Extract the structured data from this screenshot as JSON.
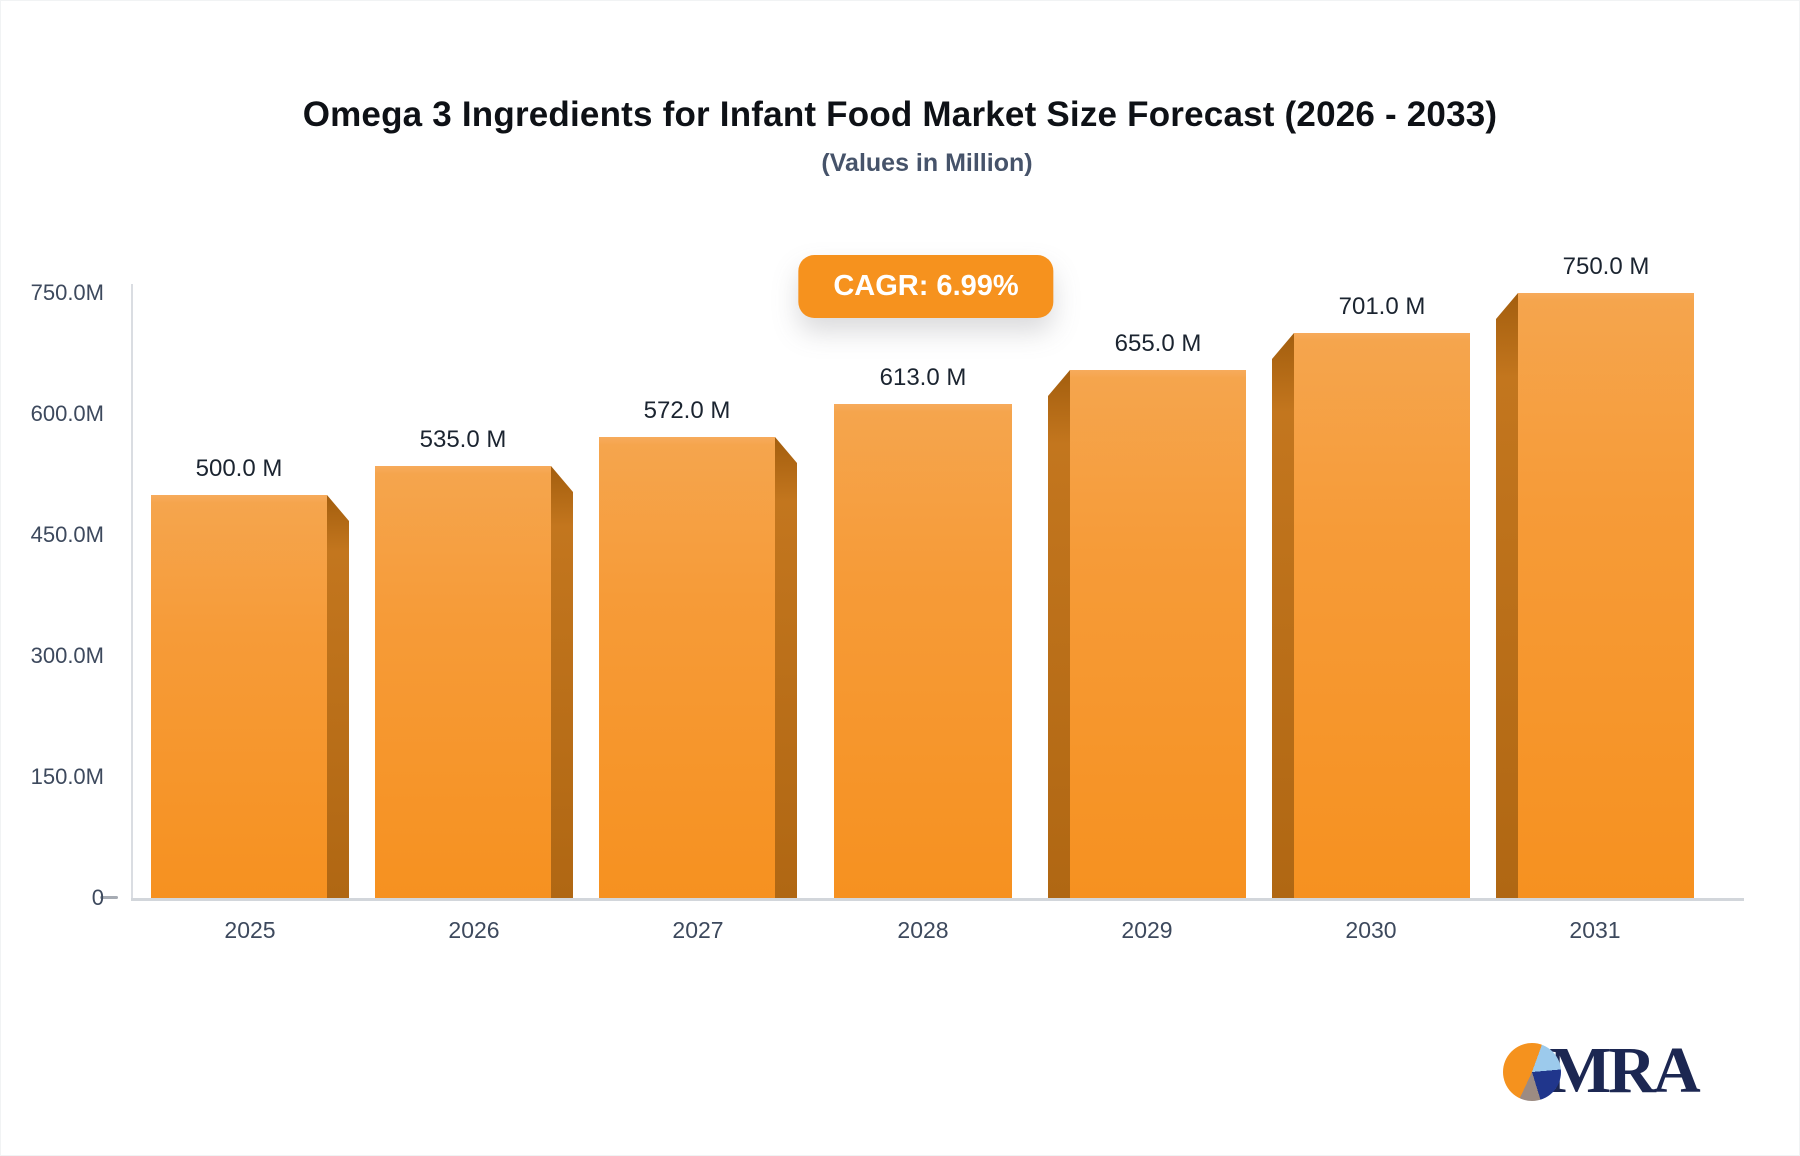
{
  "title": "Omega 3 Ingredients for Infant Food Market Size Forecast (2026 - 2033)",
  "subtitle": "(Values in Million)",
  "badge": {
    "label": "CAGR: 6.99%"
  },
  "logo": {
    "text": "MRA"
  },
  "colors": {
    "bar_face_top": "#F5A54D",
    "bar_face_bottom": "#F69120",
    "bar_side": "#B06713",
    "badge_bg": "#F6921E",
    "axis_text": "#3D495D",
    "value_text": "#1B2430",
    "title_text": "#0E1116",
    "subtitle_text": "#46536A",
    "logo_navy": "#1C2752",
    "pie_orange": "#F5921E",
    "pie_lightblue": "#9CCAEC",
    "pie_navy": "#20368C",
    "pie_gray": "#9C8B82"
  },
  "chart_data": {
    "type": "bar",
    "title": "Omega 3 Ingredients for Infant Food Market Size Forecast (2026 - 2033)",
    "subtitle": "(Values in Million)",
    "unit": "Million",
    "categories": [
      "2025",
      "2026",
      "2027",
      "2028",
      "2029",
      "2030",
      "2031"
    ],
    "values": [
      500.0,
      535.0,
      572.0,
      613.0,
      655.0,
      701.0,
      750.0
    ],
    "value_labels": [
      "500.0 M",
      "535.0 M",
      "572.0 M",
      "613.0 M",
      "655.0 M",
      "701.0 M",
      "750.0 M"
    ],
    "annotation": "CAGR: 6.99%",
    "ylim": [
      0,
      750
    ],
    "y_ticks": [
      {
        "value": 750,
        "label": "750.0M"
      },
      {
        "value": 600,
        "label": "600.0M"
      },
      {
        "value": 450,
        "label": "450.0M"
      },
      {
        "value": 300,
        "label": "300.0M"
      },
      {
        "value": 150,
        "label": "150.0M"
      },
      {
        "value": 0,
        "label": "0"
      }
    ],
    "grid": false,
    "legend": false,
    "bar_style": "3d-orange"
  }
}
